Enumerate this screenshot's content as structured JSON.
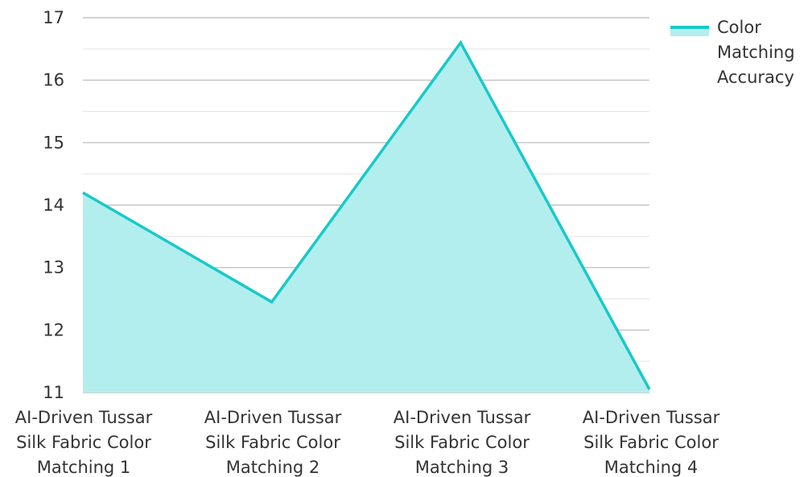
{
  "chart_data": {
    "type": "area",
    "title": "",
    "xlabel": "",
    "ylabel": "",
    "categories": [
      [
        "AI-Driven Tussar",
        "Silk Fabric Color",
        "Matching 1"
      ],
      [
        "AI-Driven Tussar",
        "Silk Fabric Color",
        "Matching 2"
      ],
      [
        "AI-Driven Tussar",
        "Silk Fabric Color",
        "Matching 3"
      ],
      [
        "AI-Driven Tussar",
        "Silk Fabric Color",
        "Matching 4"
      ]
    ],
    "series": [
      {
        "name": "Color Matching Accuracy",
        "legend_lines": [
          "Color",
          "Matching",
          "Accuracy"
        ],
        "values": [
          14.2,
          12.45,
          16.6,
          11.05
        ],
        "line_color": "#19C9C9",
        "fill_color": "#B3EEEE"
      }
    ],
    "ylim": [
      11,
      17
    ],
    "yticks": [
      11,
      12,
      13,
      14,
      15,
      16,
      17
    ],
    "minor_grid": true,
    "grid": true,
    "legend_position": "top-right"
  }
}
